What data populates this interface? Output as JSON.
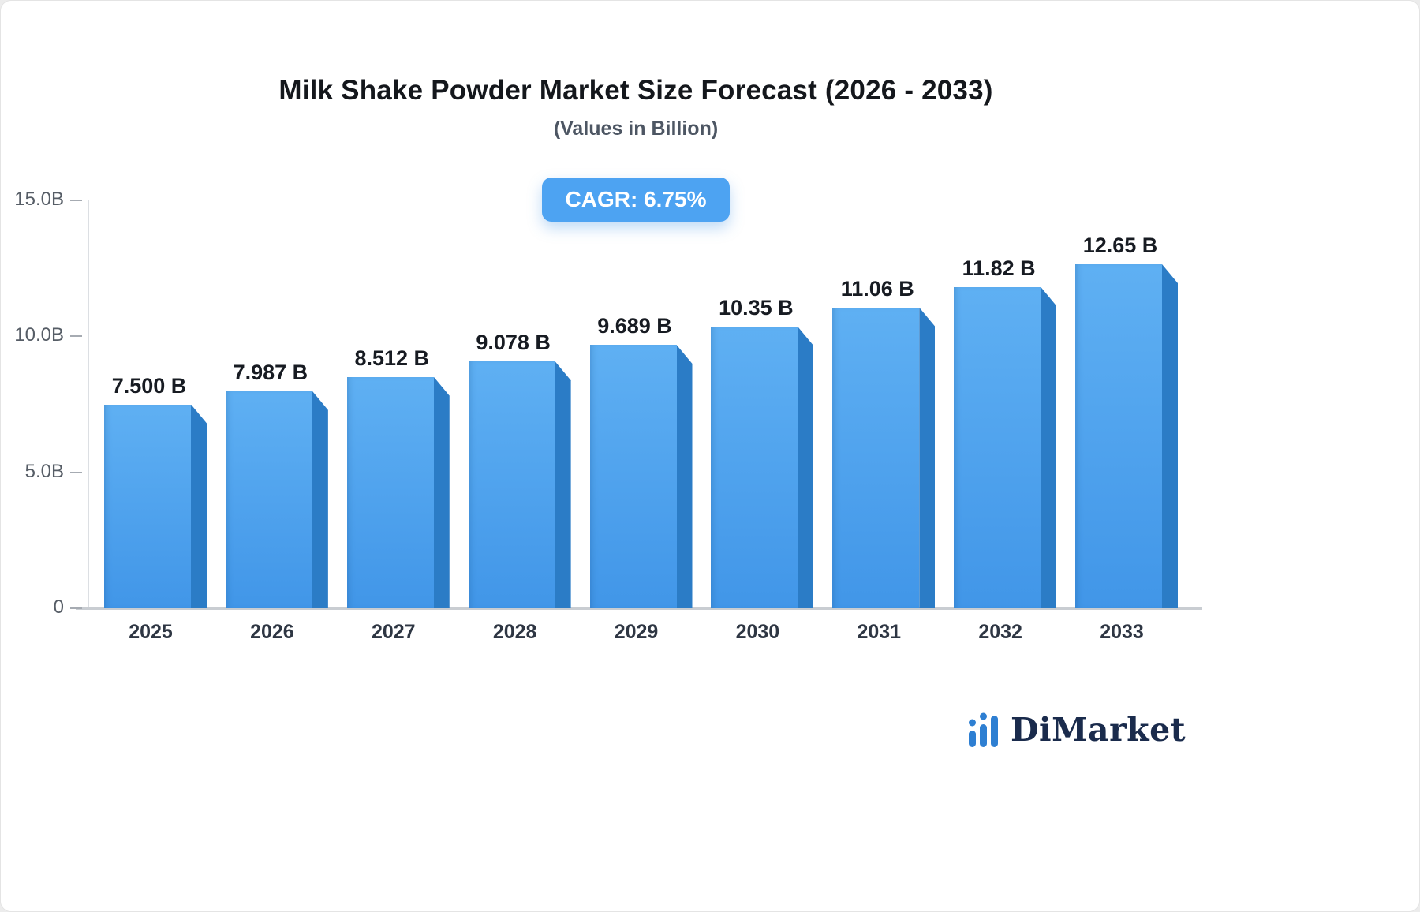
{
  "title": "Milk Shake Powder Market Size Forecast (2026 - 2033)",
  "subtitle": "(Values in Billion)",
  "badge": {
    "label": "CAGR: 6.75%",
    "bg": "#4da3f2",
    "text_color": "#ffffff"
  },
  "logo": {
    "text": "DiMarket",
    "icon": "bar-chart-icon",
    "text_color": "#1a2b4c",
    "icon_color": "#2e7fd2"
  },
  "chart_data": {
    "type": "bar",
    "title": "Milk Shake Powder Market Size Forecast (2026 - 2033)",
    "subtitle": "(Values in Billion)",
    "categories": [
      "2025",
      "2026",
      "2027",
      "2028",
      "2029",
      "2030",
      "2031",
      "2032",
      "2033"
    ],
    "values": [
      7.5,
      7.987,
      8.512,
      9.078,
      9.689,
      10.35,
      11.06,
      11.82,
      12.65
    ],
    "labels": [
      "7.500 B",
      "7.987 B",
      "8.512 B",
      "9.078 B",
      "9.689 B",
      "10.35 B",
      "11.06 B",
      "11.82 B",
      "12.65 B"
    ],
    "xlabel": "",
    "ylabel": "",
    "ylim": [
      0,
      15
    ],
    "yticks": [
      {
        "value": 0,
        "label": "0"
      },
      {
        "value": 5,
        "label": "5.0B"
      },
      {
        "value": 10,
        "label": "10.0B"
      },
      {
        "value": 15,
        "label": "15.0B"
      }
    ],
    "grid": false,
    "legend": false,
    "bar_color_top": "#5fb0f3",
    "bar_color_bottom": "#4196e8",
    "bar_side_color": "#2b7cc6"
  }
}
